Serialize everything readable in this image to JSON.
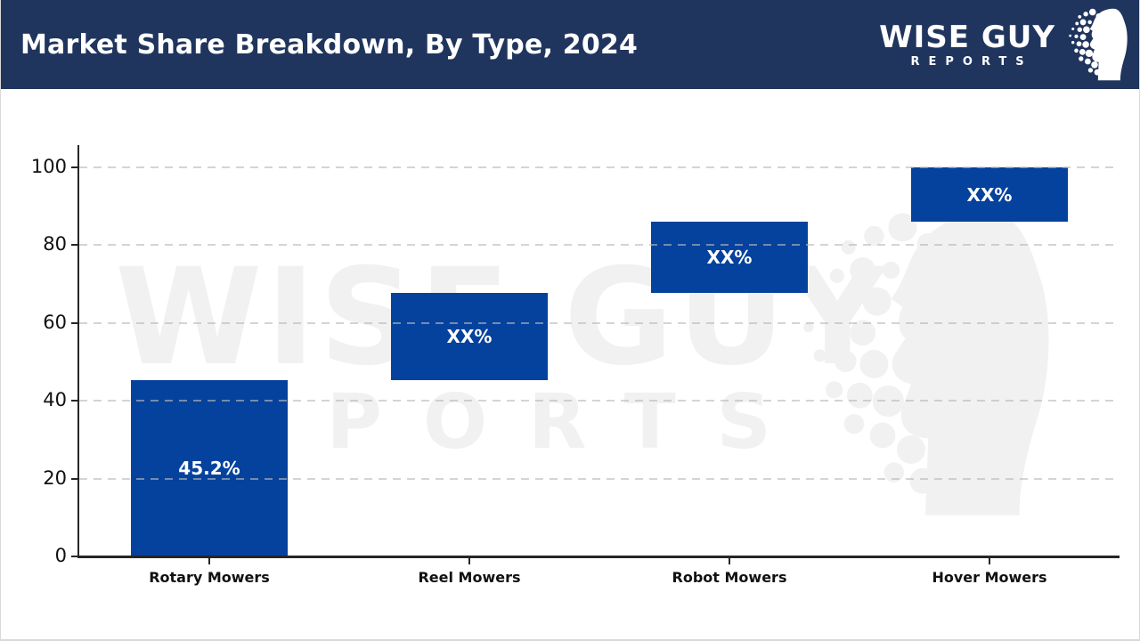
{
  "header": {
    "title": "Market Share Breakdown, By Type, 2024",
    "bg_color": "#20355E",
    "logo": {
      "wordmark": "WISE GUY",
      "subtext": "REPORTS"
    }
  },
  "watermark": {
    "line1": "WISE GUY",
    "line2": "REPORTS"
  },
  "chart_data": {
    "type": "bar",
    "subtype": "waterfall",
    "title": "Market Share Breakdown, By Type, 2024",
    "categories": [
      "Rotary Mowers",
      "Reel Mowers",
      "Robot Mowers",
      "Hover Mowers"
    ],
    "segments": [
      {
        "category": "Rotary Mowers",
        "start": 0,
        "end": 45.2,
        "label": "45.2%"
      },
      {
        "category": "Reel Mowers",
        "start": 45.2,
        "end": 67.8,
        "label": "XX%"
      },
      {
        "category": "Robot Mowers",
        "start": 67.8,
        "end": 86.0,
        "label": "XX%"
      },
      {
        "category": "Hover Mowers",
        "start": 86.0,
        "end": 100,
        "label": "XX%"
      }
    ],
    "y_ticks": [
      0,
      20,
      40,
      60,
      80,
      100
    ],
    "ylim": [
      0,
      105.7
    ],
    "xlabel": "",
    "ylabel": "",
    "grid": true,
    "grid_style": "dashed",
    "legend": false,
    "bar_color": "#05429D",
    "bar_label_color": "#FFFFFF",
    "grid_color": "#B9B9B9",
    "axis_color": "#262626"
  }
}
